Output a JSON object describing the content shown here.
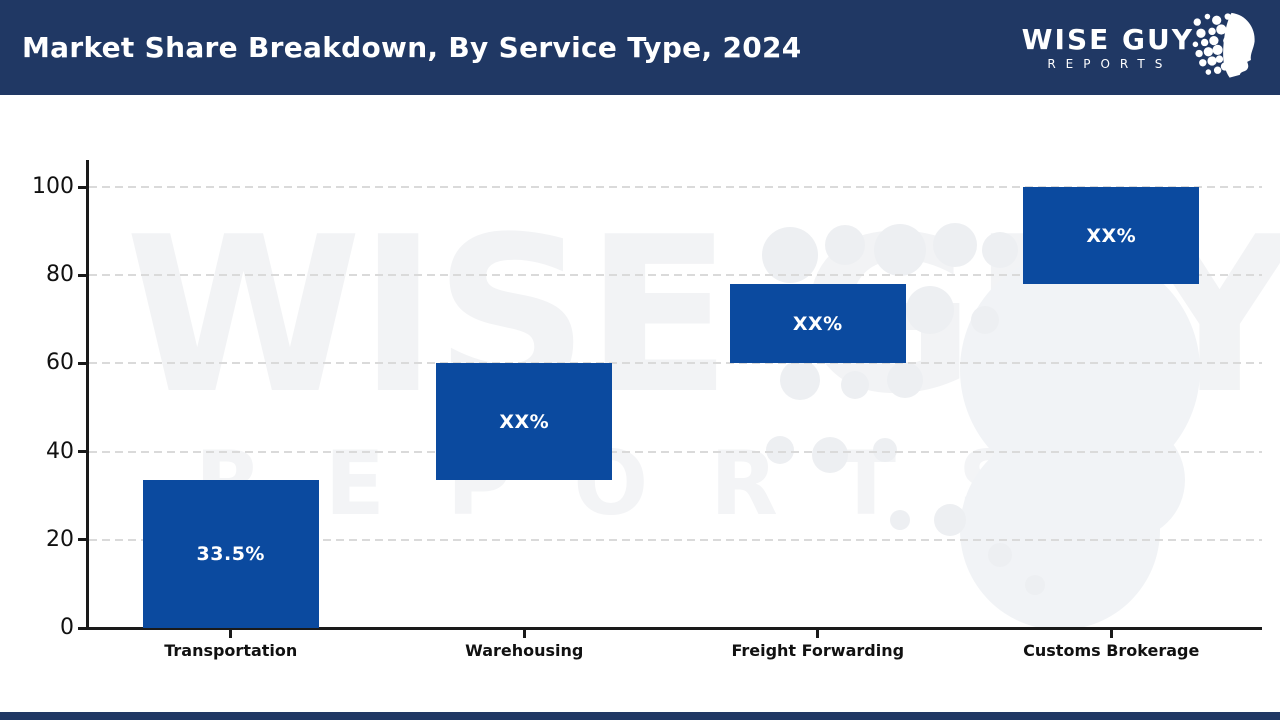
{
  "header": {
    "title": "Market Share Breakdown, By Service Type, 2024",
    "logo": {
      "primary": "WISE GUY",
      "secondary": "REPORTS"
    }
  },
  "watermark": {
    "primary": "WISE GUY",
    "secondary": "REPORTS"
  },
  "chart_data": {
    "type": "bar",
    "subtype": "floating-waterfall",
    "title": "Market Share Breakdown, By Service Type, 2024",
    "categories": [
      "Transportation",
      "Warehousing",
      "Freight Forwarding",
      "Customs Brokerage"
    ],
    "bars": [
      {
        "category": "Transportation",
        "start": 0,
        "end": 33.5,
        "label": "33.5%"
      },
      {
        "category": "Warehousing",
        "start": 33.5,
        "end": 60,
        "label": "XX%"
      },
      {
        "category": "Freight Forwarding",
        "start": 60,
        "end": 78,
        "label": "XX%"
      },
      {
        "category": "Customs Brokerage",
        "start": 78,
        "end": 100,
        "label": "XX%"
      }
    ],
    "xlabel": "",
    "ylabel": "",
    "y_ticks": [
      0,
      20,
      40,
      60,
      80,
      100
    ],
    "ylim": [
      0,
      106
    ],
    "grid": "horizontal-dashed",
    "legend": "none",
    "bar_color": "#0b4a9f",
    "bar_label_color": "#ffffff"
  },
  "colors": {
    "header_bg": "#203864",
    "footer_bg": "#203864",
    "bar": "#0b4a9f",
    "watermark": "#f2f3f5",
    "gridline": "#dadada",
    "axis": "#1a1a1a"
  }
}
